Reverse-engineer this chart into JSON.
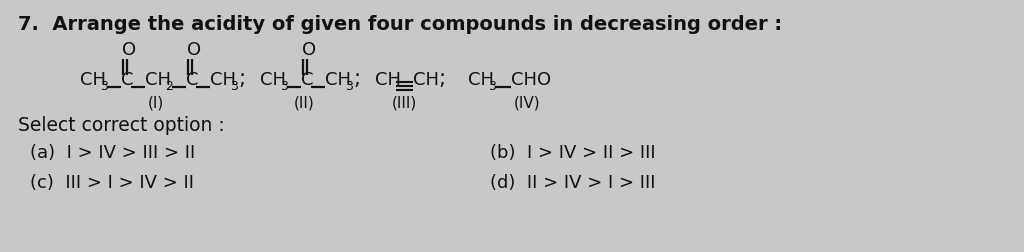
{
  "title": "7.  Arrange the acidity of given four compounds in decreasing order :",
  "bg_color": "#c8c8c8",
  "text_color": "#111111",
  "select_text": "Select correct option :",
  "option_a": "(a)  I > IV > III > II",
  "option_b": "(b)  I > IV > II > III",
  "option_c": "(c)  III > I > IV > II",
  "option_d": "(d)  II > IV > I > III",
  "figsize": [
    10.24,
    2.53
  ],
  "dpi": 100,
  "title_fs": 14,
  "body_fs": 13,
  "sub_fs": 9,
  "label_fs": 11,
  "option_fs": 13
}
